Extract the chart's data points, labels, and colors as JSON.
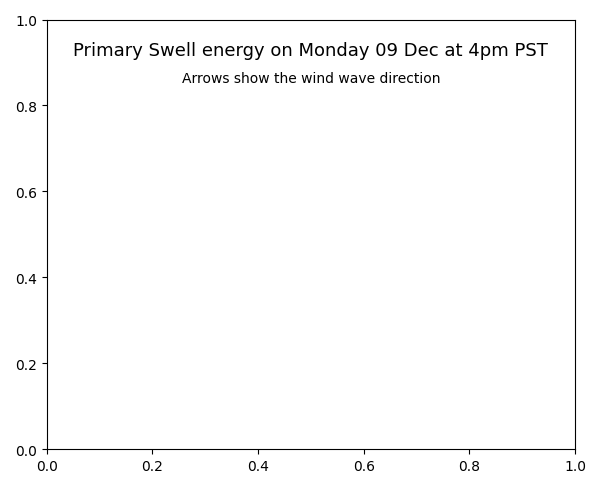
{
  "title": "Primary Swell energy on Monday 09 Dec at 4pm PST",
  "subtitle": "Arrows show the wind wave direction",
  "extent": [
    -127.0,
    -108.0,
    30.5,
    50.0
  ],
  "figsize": [
    6.01,
    4.89
  ],
  "dpi": 100,
  "title_fontsize": 13,
  "subtitle_fontsize": 10,
  "border_color": "#000000",
  "ocean_color": "#ffffff",
  "background_color": "#ffffff",
  "title_bg_color": "#ffffff",
  "map_border_color": "#000000"
}
